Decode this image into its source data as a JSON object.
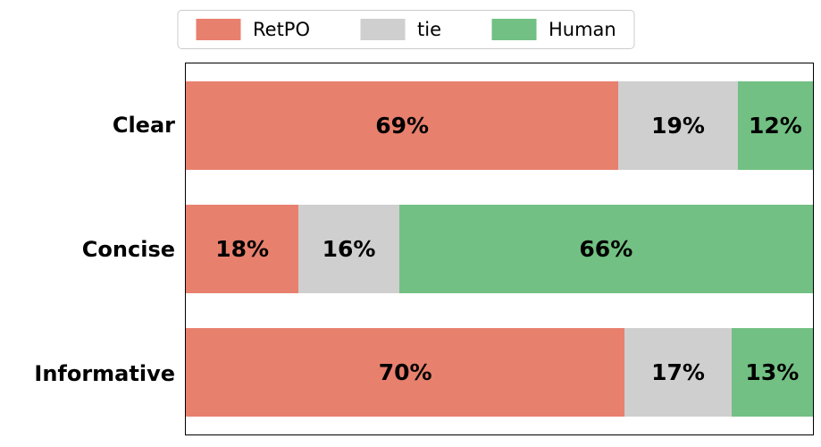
{
  "chart_data": {
    "type": "bar",
    "orientation": "horizontal",
    "stacked": true,
    "title": "",
    "xlabel": "",
    "ylabel": "",
    "xlim": [
      0,
      100
    ],
    "grid": false,
    "legend_position": "top",
    "value_suffix": "%",
    "categories": [
      "Clear",
      "Concise",
      "Informative"
    ],
    "series": [
      {
        "name": "RetPO",
        "color": "#E8806E",
        "values": [
          69,
          18,
          70
        ]
      },
      {
        "name": "tie",
        "color": "#CFCFCF",
        "values": [
          19,
          16,
          17
        ]
      },
      {
        "name": "Human",
        "color": "#72C083",
        "values": [
          12,
          66,
          13
        ]
      }
    ]
  }
}
